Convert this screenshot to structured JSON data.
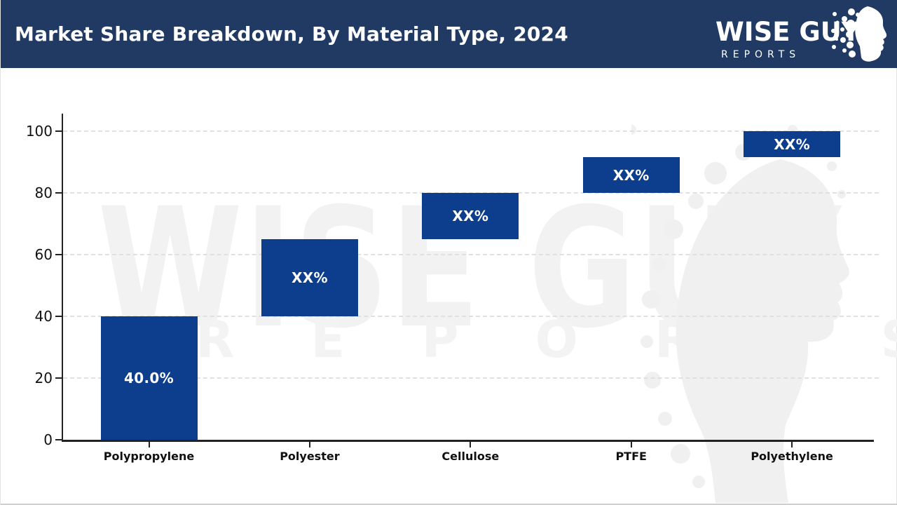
{
  "header": {
    "title": "Market Share Breakdown, By Material Type, 2024",
    "bg_color": "#213a64",
    "logo": {
      "name": "WISE GUY REPORTS",
      "line1": "WISE GUY",
      "line2": "R E P O R T S"
    }
  },
  "watermark": {
    "line1": "WISE GUY",
    "line2": "R E P O R T S"
  },
  "chart_data": {
    "type": "bar",
    "subtype": "waterfall",
    "title": "Market Share Breakdown, By Material Type, 2024",
    "categories": [
      "Polypropylene",
      "Polyester",
      "Cellulose",
      "PTFE",
      "Polyethylene"
    ],
    "segments": [
      {
        "category": "Polypropylene",
        "start": 0,
        "end": 40,
        "value_label": "40.0%"
      },
      {
        "category": "Polyester",
        "start": 40,
        "end": 65,
        "value_label": "XX%"
      },
      {
        "category": "Cellulose",
        "start": 65,
        "end": 80,
        "value_label": "XX%"
      },
      {
        "category": "PTFE",
        "start": 80,
        "end": 91.5,
        "value_label": "XX%"
      },
      {
        "category": "Polyethylene",
        "start": 91.5,
        "end": 100,
        "value_label": "XX%"
      }
    ],
    "xlabel": "",
    "ylabel": "",
    "ylim": [
      0,
      100
    ],
    "yticks": [
      0,
      20,
      40,
      60,
      80,
      100
    ],
    "grid": "horizontal-dashed",
    "legend": "none",
    "bar_color": "#0c3e8d",
    "bar_label_color": "#ffffff",
    "axis_color": "#222222",
    "grid_color": "#e0e0e0",
    "tick_label_color": "#111111"
  }
}
